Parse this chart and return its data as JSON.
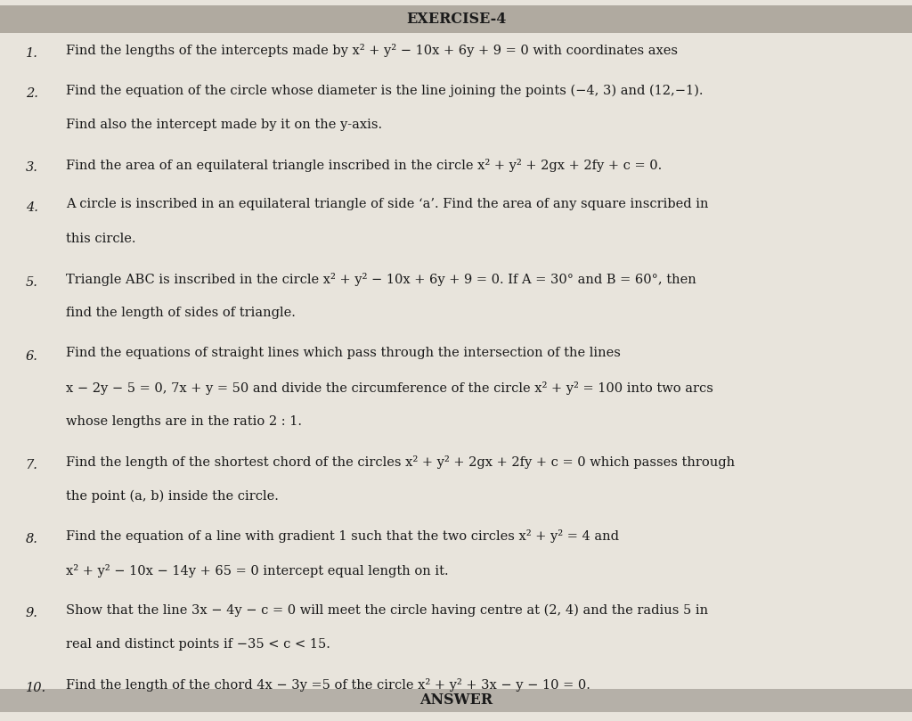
{
  "title": "EXERCISE-4",
  "page_color": "#e8e4dc",
  "title_bg_color": "#b0aaa0",
  "answer_bg_color": "#b5b0a8",
  "title_fontsize": 11.5,
  "body_fontsize": 10.5,
  "num_fontsize": 10.5,
  "answer_label": "ANSWER",
  "items": [
    {
      "num": "1.",
      "lines": [
        "Find the lengths of the intercepts made by x² + y² − 10x + 6y + 9 = 0 with coordinates axes"
      ]
    },
    {
      "num": "2.",
      "lines": [
        "Find the equation of the circle whose diameter is the line joining the points (−4, 3) and (12,−1).",
        "Find also the intercept made by it on the y-axis."
      ]
    },
    {
      "num": "3.",
      "lines": [
        "Find the area of an equilateral triangle inscribed in the circle x² + y² + 2gx + 2fy + c = 0."
      ]
    },
    {
      "num": "4.",
      "lines": [
        "A circle is inscribed in an equilateral triangle of side ‘a’. Find the area of any square inscribed in",
        "this circle."
      ]
    },
    {
      "num": "5.",
      "lines": [
        "Triangle ABC is inscribed in the circle x² + y² − 10x + 6y + 9 = 0. If A = 30° and B = 60°, then",
        "find the length of sides of triangle."
      ]
    },
    {
      "num": "6.",
      "lines": [
        "Find the equations of straight lines which pass through the intersection of the lines",
        "x − 2y − 5 = 0, 7x + y = 50 and divide the circumference of the circle x² + y² = 100 into two arcs",
        "whose lengths are in the ratio 2 : 1."
      ]
    },
    {
      "num": "7.",
      "lines": [
        "Find the length of the shortest chord of the circles x² + y² + 2gx + 2fy + c = 0 which passes through",
        "the point (a, b) inside the circle."
      ]
    },
    {
      "num": "8.",
      "lines": [
        "Find the equation of a line with gradient 1 such that the two circles x² + y² = 4 and",
        "x² + y² − 10x − 14y + 65 = 0 intercept equal length on it."
      ]
    },
    {
      "num": "9.",
      "lines": [
        "Show that the line 3x − 4y − c = 0 will meet the circle having centre at (2, 4) and the radius 5 in",
        "real and distinct points if −35 < c < 15."
      ]
    },
    {
      "num": "10.",
      "lines": [
        "Find the length of the chord 4x − 3y =5 of the circle x² + y² + 3x − y − 10 = 0."
      ]
    }
  ]
}
